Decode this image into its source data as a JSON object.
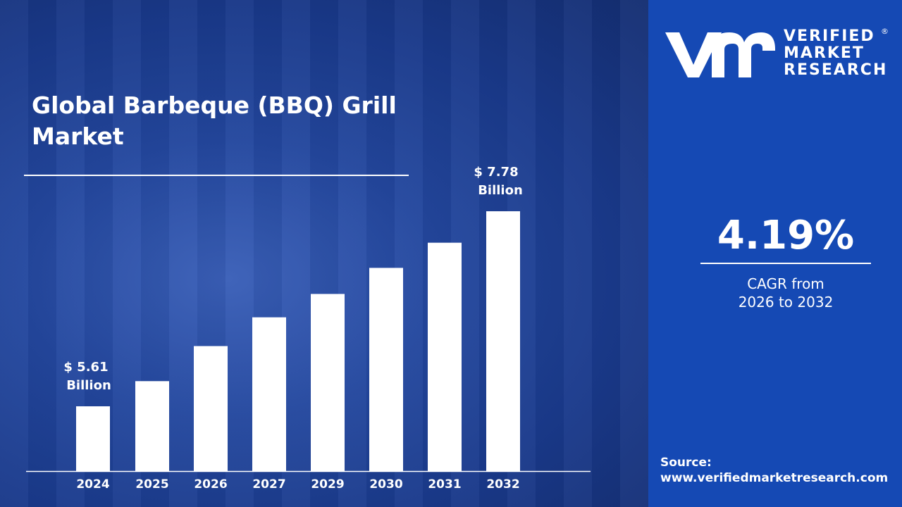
{
  "title": "Global Barbeque (BBQ) Grill Market",
  "logo": {
    "line1": "VERIFIED",
    "line2": "MARKET",
    "line3": "RESEARCH",
    "mark": "®"
  },
  "cagr": {
    "value": "4.19%",
    "label_line1": "CAGR from",
    "label_line2": "2026 to 2032"
  },
  "source": {
    "label": "Source:",
    "url": "www.verifiedmarketresearch.com"
  },
  "colors": {
    "panel": "#1549b4",
    "bars": "#ffffff"
  },
  "chart_data": {
    "type": "bar",
    "categories": [
      "2024",
      "2025",
      "2026",
      "2027",
      "2029",
      "2030",
      "2031",
      "2032"
    ],
    "values": [
      5.61,
      5.89,
      6.28,
      6.6,
      6.86,
      7.15,
      7.43,
      7.78
    ],
    "unit": "Billion USD",
    "data_labels": [
      {
        "category": "2024",
        "line1": "$ 5.61",
        "line2": "Billion"
      },
      {
        "category": "2032",
        "line1": "$ 7.78",
        "line2": "Billion"
      }
    ],
    "grid": false
  }
}
